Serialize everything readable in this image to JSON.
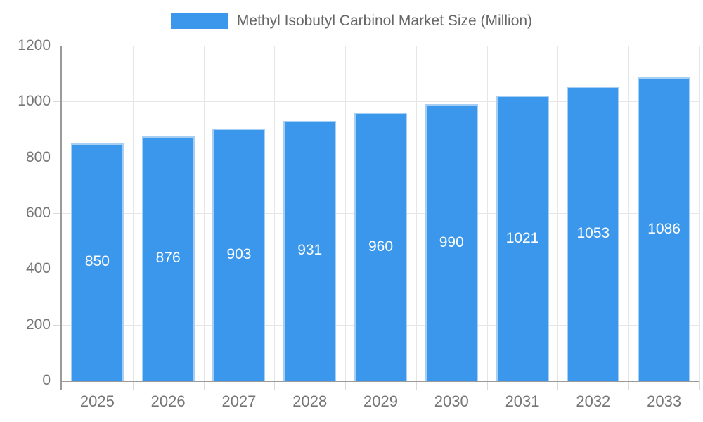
{
  "legend": {
    "label": "Methyl Isobutyl Carbinol Market Size (Million)"
  },
  "chart_data": {
    "type": "bar",
    "title": "Methyl Isobutyl Carbinol Market Size (Million)",
    "categories": [
      "2025",
      "2026",
      "2027",
      "2028",
      "2029",
      "2030",
      "2031",
      "2032",
      "2033"
    ],
    "values": [
      850,
      876,
      903,
      931,
      960,
      990,
      1021,
      1053,
      1086
    ],
    "value_labels": [
      "850",
      "876",
      "903",
      "931",
      "960",
      "990",
      "1021",
      "1053",
      "1086"
    ],
    "xlabel": "",
    "ylabel": "",
    "ylim": [
      0,
      1200
    ],
    "yticks": [
      0,
      200,
      400,
      600,
      800,
      1000,
      1200
    ],
    "ytick_labels": [
      "0",
      "200",
      "400",
      "600",
      "800",
      "1000",
      "1200"
    ],
    "grid": true,
    "legend_position": "top",
    "colors": {
      "bar_fill": "#3b97eb",
      "bar_border": "#a7cef3",
      "grid_line": "#e6e6e6",
      "axis_line": "#9a9a9a",
      "tick_mark": "#d9d9d9",
      "axis_label": "#757575",
      "legend_text": "#666666",
      "value_label": "#ffffff",
      "background": "#ffffff"
    }
  }
}
